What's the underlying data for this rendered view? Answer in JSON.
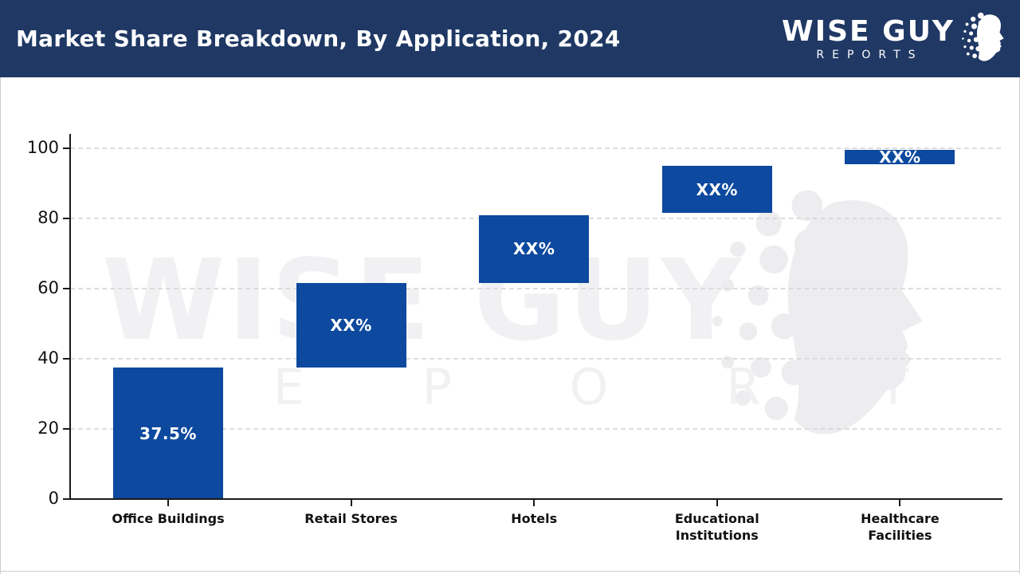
{
  "header": {
    "title": "Market Share Breakdown, By Application, 2024",
    "logo": {
      "name": "WISE GUY",
      "subtitle": "REPORTS"
    }
  },
  "watermark": {
    "name": "WISE GUY",
    "subtitle": "R E P O R T S"
  },
  "colors": {
    "header_bg": "#1f3864",
    "bar": "#0d499e",
    "gridline": "#dcdcdc",
    "axis": "#1a1a1a",
    "bar_label": "#ffffff",
    "tick_label": "#111111",
    "watermark": "#f1f1f3"
  },
  "chart_data": {
    "type": "bar",
    "subtype": "floating-waterfall",
    "title": "Market Share Breakdown, By Application, 2024",
    "xlabel": "",
    "ylabel": "",
    "ylim": [
      0,
      100
    ],
    "yticks": [
      0,
      20,
      40,
      60,
      80,
      100
    ],
    "grid": "horizontal-dashed",
    "legend": "none",
    "categories": [
      "Office Buildings",
      "Retail Stores",
      "Hotels",
      "Educational Institutions",
      "Healthcare Facilities"
    ],
    "bars": [
      {
        "category": "Office Buildings",
        "label_lines": [
          "Office Buildings"
        ],
        "start": 0,
        "end": 37.5,
        "value_label": "37.5%"
      },
      {
        "category": "Retail Stores",
        "label_lines": [
          "Retail Stores"
        ],
        "start": 37.5,
        "end": 61.5,
        "value_label": "XX%"
      },
      {
        "category": "Hotels",
        "label_lines": [
          "Hotels"
        ],
        "start": 61.5,
        "end": 81,
        "value_label": "XX%"
      },
      {
        "category": "Educational Institutions",
        "label_lines": [
          "Educational",
          "Institutions"
        ],
        "start": 81.5,
        "end": 95,
        "value_label": "XX%"
      },
      {
        "category": "Healthcare Facilities",
        "label_lines": [
          "Healthcare",
          "Facilities"
        ],
        "start": 95.5,
        "end": 99.5,
        "value_label": "XX%"
      }
    ]
  }
}
